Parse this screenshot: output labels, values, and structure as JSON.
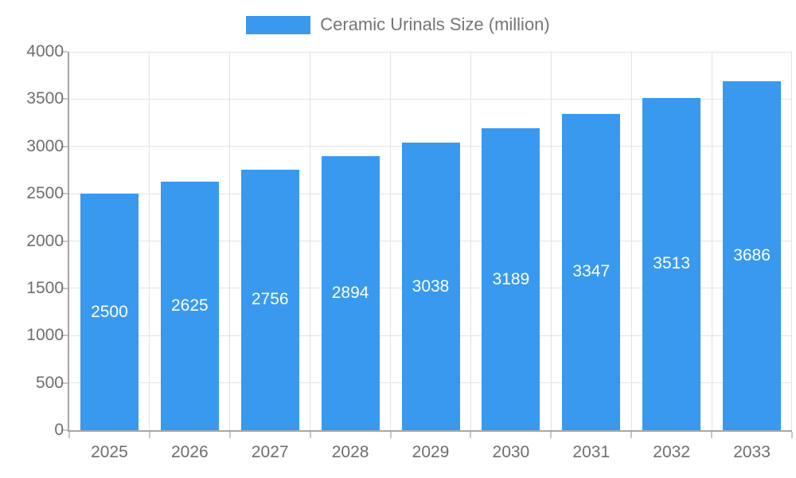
{
  "legend": {
    "label": "Ceramic Urinals Size (million)"
  },
  "chart_data": {
    "type": "bar",
    "title": "Ceramic Urinals Size (million)",
    "categories": [
      "2025",
      "2026",
      "2027",
      "2028",
      "2029",
      "2030",
      "2031",
      "2032",
      "2033"
    ],
    "values": [
      2500,
      2625,
      2756,
      2894,
      3038,
      3189,
      3347,
      3513,
      3686
    ],
    "series_name": "Ceramic Urinals Size (million)",
    "xlabel": "",
    "ylabel": "",
    "ylim": [
      0,
      4000
    ],
    "ytick_step": 500,
    "yticks": [
      0,
      500,
      1000,
      1500,
      2000,
      2500,
      3000,
      3500,
      4000
    ],
    "grid": true,
    "legend_position": "top",
    "value_labels": "centered-inside-bars"
  },
  "colors": {
    "bar": "#3999EE",
    "value_label": "#FFFFFF",
    "axis_line": "#A6A6A6",
    "gridline": "#E2E2E2",
    "tick": "#C6C6C6",
    "axis_text": "#6E6E6E",
    "legend_text": "#757575",
    "background": "#FFFFFF"
  }
}
